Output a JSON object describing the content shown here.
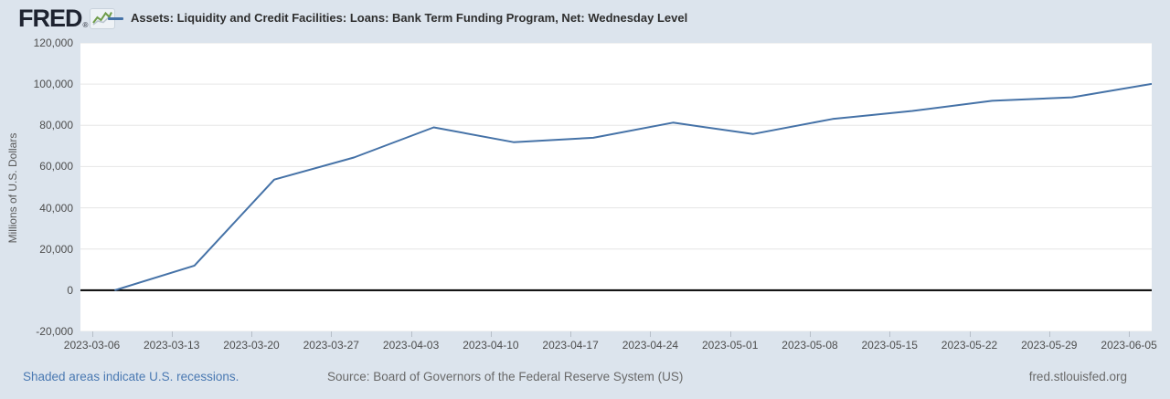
{
  "header": {
    "logo_text": "FRED",
    "registered_mark": "®",
    "legend": {
      "series_label": "Assets: Liquidity and Credit Facilities: Loans: Bank Term Funding Program, Net: Wednesday Level",
      "series_color": "#4572a7"
    }
  },
  "chart_data": {
    "type": "line",
    "title": "Assets: Liquidity and Credit Facilities: Loans: Bank Term Funding Program, Net: Wednesday Level",
    "xlabel": "",
    "ylabel": "Millions of U.S. Dollars",
    "x": [
      "2023-03-08",
      "2023-03-15",
      "2023-03-22",
      "2023-03-29",
      "2023-04-05",
      "2023-04-12",
      "2023-04-19",
      "2023-04-26",
      "2023-05-03",
      "2023-05-10",
      "2023-05-17",
      "2023-05-24",
      "2023-05-31",
      "2023-06-07"
    ],
    "values": [
      0,
      11943,
      53669,
      64403,
      79021,
      71837,
      73982,
      81327,
      75778,
      83101,
      87006,
      91907,
      93615,
      100161
    ],
    "x_ticks": [
      "2023-03-06",
      "2023-03-13",
      "2023-03-20",
      "2023-03-27",
      "2023-04-03",
      "2023-04-10",
      "2023-04-17",
      "2023-04-24",
      "2023-05-01",
      "2023-05-08",
      "2023-05-15",
      "2023-05-22",
      "2023-05-29",
      "2023-06-05"
    ],
    "y_ticks": [
      -20000,
      0,
      20000,
      40000,
      60000,
      80000,
      100000,
      120000
    ],
    "ylim": [
      -20000,
      120000
    ],
    "xlim": [
      "2023-03-05",
      "2023-06-07"
    ],
    "grid": "horizontal",
    "legend_position": "top",
    "line_color": "#4572a7",
    "grid_color": "#e6e6e6",
    "zero_line_color": "#000000"
  },
  "footer": {
    "recessions_note": "Shaded areas indicate U.S. recessions.",
    "source": "Source: Board of Governors of the Federal Reserve System (US)",
    "site": "fred.stlouisfed.org"
  }
}
